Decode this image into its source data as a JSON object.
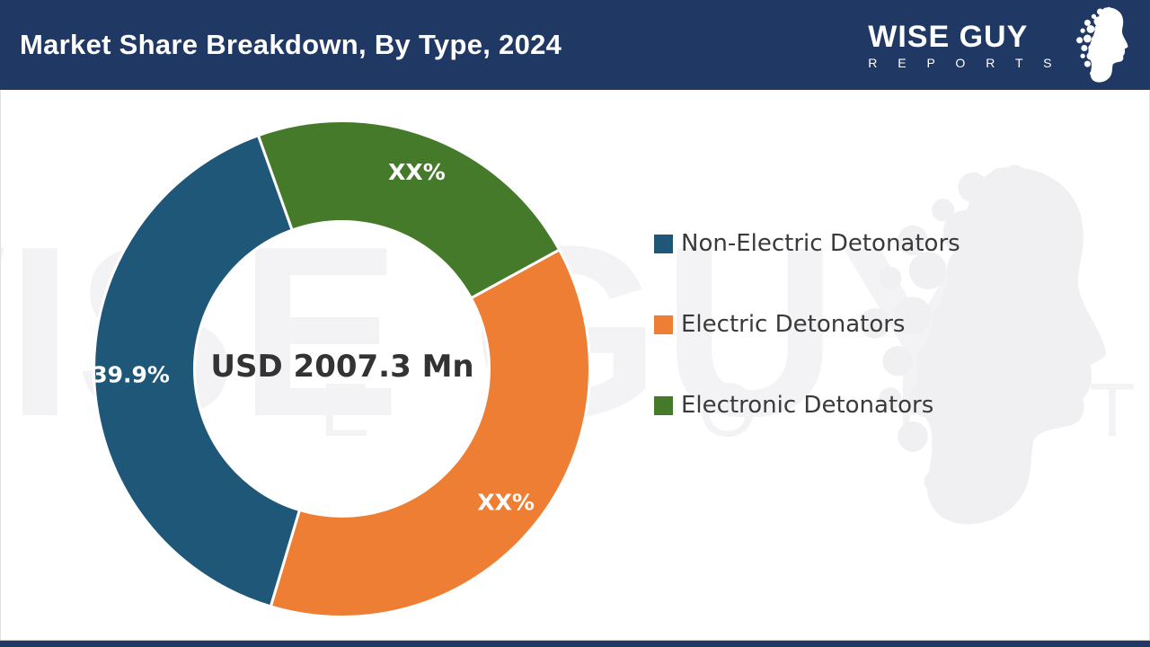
{
  "header": {
    "title": "Market Share Breakdown, By Type, 2024",
    "bg_color": "#1F3864",
    "logo": {
      "line1": "WISE GUY",
      "line2": "R E P O R T S"
    }
  },
  "chart_data": {
    "type": "pie",
    "subtype": "donut",
    "title": "Market Share Breakdown, By Type, 2024",
    "center_label": "USD 2007.3 Mn",
    "categories": [
      "Non-Electric Detonators",
      "Electric Detonators",
      "Electronic Detonators"
    ],
    "values": [
      39.9,
      37.6,
      22.5
    ],
    "values_estimated": [
      false,
      true,
      true
    ],
    "slice_labels": [
      "39.9%",
      "XX%",
      "XX%"
    ],
    "colors": [
      "#1F5778",
      "#EE7E33",
      "#467A2B"
    ],
    "start_angle_deg": 109.7,
    "direction": "counterclockwise",
    "legend_position": "right",
    "slice_label_color": "#ffffff",
    "center_label_color": "#333333"
  },
  "legend": {
    "items": [
      {
        "label": "Non-Electric Detonators"
      },
      {
        "label": "Electric Detonators"
      },
      {
        "label": "Electronic Detonators"
      }
    ]
  },
  "watermark": {
    "line1": "WISE GUY",
    "line2": "R E P O R T S"
  },
  "footer": {
    "bar_color": "#1F3864"
  }
}
